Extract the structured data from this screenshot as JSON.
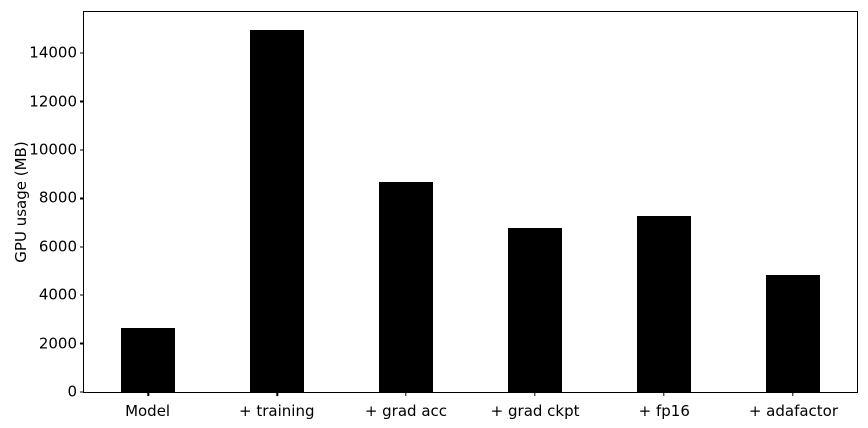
{
  "chart_data": {
    "type": "bar",
    "title": "",
    "xlabel": "",
    "ylabel": "GPU usage (MB)",
    "categories": [
      "Model",
      "+ training",
      "+ grad acc",
      "+ grad ckpt",
      "+ fp16",
      "+ adafactor"
    ],
    "values": [
      2631,
      14949,
      8681,
      6775,
      7275,
      4847
    ],
    "yticks": [
      0,
      2000,
      4000,
      6000,
      8000,
      10000,
      12000,
      14000
    ],
    "ylim": [
      0,
      15700
    ],
    "bar_color": "#000000",
    "axis_color": "#000000",
    "background_color": "#ffffff",
    "grid": false,
    "legend": null
  }
}
